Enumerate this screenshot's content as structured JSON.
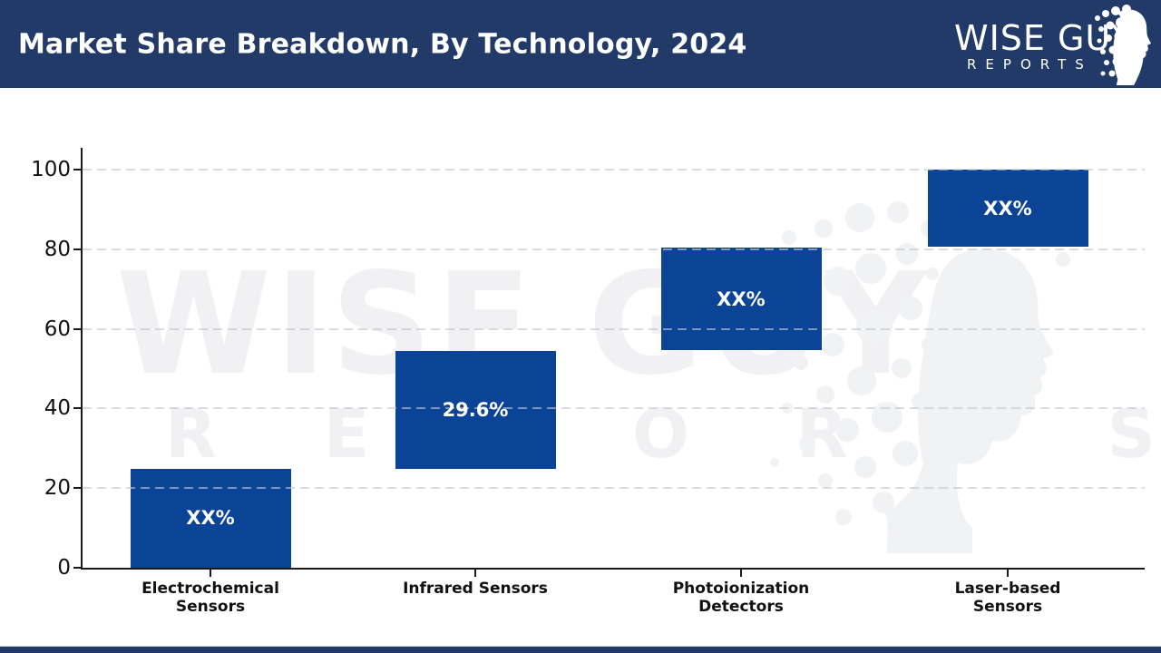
{
  "header": {
    "title": "Market Share Breakdown, By Technology, 2024",
    "logo_line1": "WISE GUY",
    "logo_line2": "REPORTS"
  },
  "watermark": {
    "line1": "WISE GUY",
    "line2": "R E P O R T S"
  },
  "colors": {
    "header_navy": "#213a67",
    "bar_blue": "#0b4496",
    "axis_black": "#1a1a1a",
    "gridline_gray": "#c3c6cd",
    "watermark_gray": "#f1f1f3",
    "value_label_white": "#ffffff"
  },
  "chart_data": {
    "type": "bar",
    "subtype": "floating-segment (waterfall-style market share breakdown)",
    "title": "Market Share Breakdown, By Technology, 2024",
    "xlabel": "",
    "ylabel": "",
    "ylim": [
      0,
      100
    ],
    "yticks": [
      0,
      20,
      40,
      60,
      80,
      100
    ],
    "grid": "horizontal dashed, drawn over bars",
    "legend": "none",
    "bar_color": "#0b4496",
    "categories": [
      "Electrochemical Sensors",
      "Infrared Sensors",
      "Photoionization Detectors",
      "Laser-based Sensors"
    ],
    "category_label_lines": [
      [
        "Electrochemical",
        "Sensors"
      ],
      [
        "Infrared Sensors"
      ],
      [
        "Photoionization",
        "Detectors"
      ],
      [
        "Laser-based",
        "Sensors"
      ]
    ],
    "bars": [
      {
        "category": "Electrochemical Sensors",
        "start": 0,
        "end": 24.9,
        "value_label": "XX%"
      },
      {
        "category": "Infrared Sensors",
        "start": 24.9,
        "end": 54.5,
        "value_label": "29.6%",
        "value": 29.6
      },
      {
        "category": "Photoionization Detectors",
        "start": 54.6,
        "end": 80.3,
        "value_label": "XX%"
      },
      {
        "category": "Laser-based Sensors",
        "start": 80.6,
        "end": 100,
        "value_label": "XX%"
      }
    ]
  }
}
